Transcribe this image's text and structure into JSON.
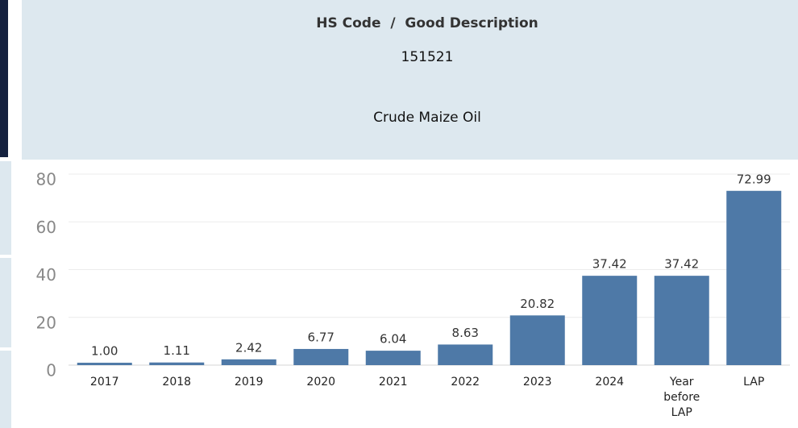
{
  "header": {
    "label": "HS Code  /  Good Description",
    "code": "151521",
    "description": "Crude Maize Oil"
  },
  "chart_data": {
    "type": "bar",
    "categories": [
      "2017",
      "2018",
      "2019",
      "2020",
      "2021",
      "2022",
      "2023",
      "2024",
      "Year before LAP",
      "LAP"
    ],
    "values": [
      1.0,
      1.11,
      2.42,
      6.77,
      6.04,
      8.63,
      20.82,
      37.42,
      37.42,
      72.99
    ],
    "value_labels": [
      "1.00",
      "1.11",
      "2.42",
      "6.77",
      "6.04",
      "8.63",
      "20.82",
      "37.42",
      "37.42",
      "72.99"
    ],
    "color": "#4e79a7",
    "ylim": [
      0,
      80
    ],
    "yticks": [
      0,
      20,
      40,
      60,
      80
    ],
    "grid": true
  }
}
